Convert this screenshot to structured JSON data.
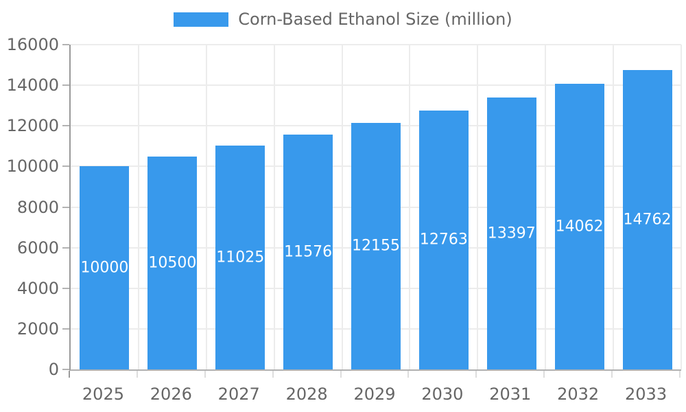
{
  "chart_data": {
    "type": "bar",
    "title": "",
    "legend": {
      "label": "Corn-Based Ethanol Size (million)",
      "position": "top"
    },
    "categories": [
      "2025",
      "2026",
      "2027",
      "2028",
      "2029",
      "2030",
      "2031",
      "2032",
      "2033"
    ],
    "series": [
      {
        "name": "Corn-Based Ethanol Size (million)",
        "values": [
          10000,
          10500,
          11025,
          11576,
          12155,
          12763,
          13397,
          14062,
          14762
        ],
        "bar_labels": [
          "10000",
          "10500",
          "11025",
          "11576",
          "12155",
          "12763",
          "13397",
          "14062",
          "14762"
        ]
      }
    ],
    "xlabel": "",
    "ylabel": "",
    "ylim": [
      0,
      16000
    ],
    "yticks": [
      0,
      2000,
      4000,
      6000,
      8000,
      10000,
      12000,
      14000,
      16000
    ],
    "grid": "on",
    "colors": {
      "bar_fill": "#3899ec",
      "bar_label_text": "#ffffff",
      "axis_text": "#666666",
      "legend_text": "#666666",
      "gridline": "#ececec",
      "axis_line": "#9a9a9a"
    }
  }
}
